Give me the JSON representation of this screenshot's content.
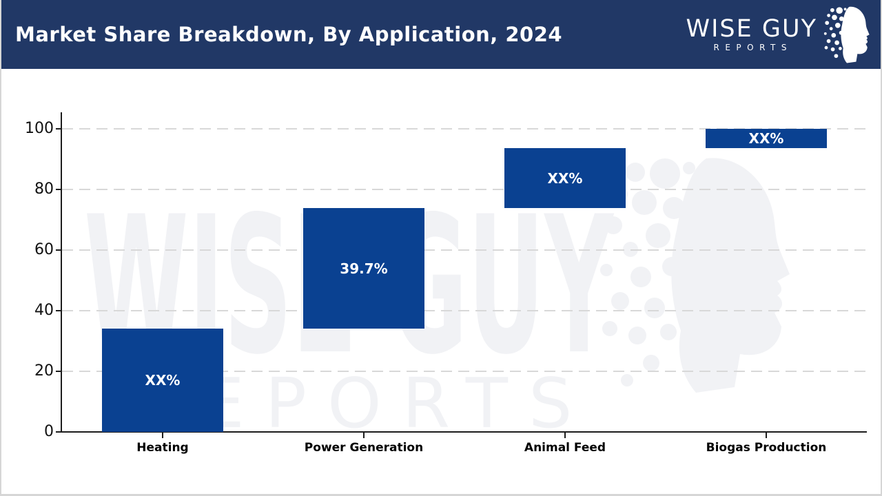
{
  "header": {
    "title": "Market Share Breakdown, By Application, 2024",
    "logo": {
      "name": "WISE GUY",
      "sub": "REPORTS"
    }
  },
  "watermark": {
    "line1": "WISE GUY",
    "line2": "REPORTS"
  },
  "chart_data": {
    "type": "bar",
    "variant": "waterfall",
    "title": "Market Share Breakdown, By Application, 2024",
    "categories": [
      "Heating",
      "Power Generation",
      "Animal Feed",
      "Biogas Production"
    ],
    "segments": [
      {
        "category": "Heating",
        "start": 0,
        "end": 34.1,
        "value": 34.1,
        "label": "XX%"
      },
      {
        "category": "Power Generation",
        "start": 34.1,
        "end": 73.8,
        "value": 39.7,
        "label": "39.7%"
      },
      {
        "category": "Animal Feed",
        "start": 73.8,
        "end": 93.6,
        "value": 19.8,
        "label": "XX%"
      },
      {
        "category": "Biogas Production",
        "start": 93.6,
        "end": 100,
        "value": 6.4,
        "label": "XX%"
      }
    ],
    "y_ticks": [
      0,
      20,
      40,
      60,
      80,
      100
    ],
    "ylim": [
      0,
      105
    ],
    "xlabel": "",
    "ylabel": "",
    "legend": "none",
    "grid": "horizontal-dashed",
    "bar_color": "#0a4191",
    "bar_label_color": "#ffffff",
    "axis_color": "#1c1c1c",
    "grid_color": "#d8d8d8"
  },
  "colors": {
    "header_bg": "#213866",
    "watermark": "#f1f2f5",
    "page_border": "#d6d6d6"
  }
}
